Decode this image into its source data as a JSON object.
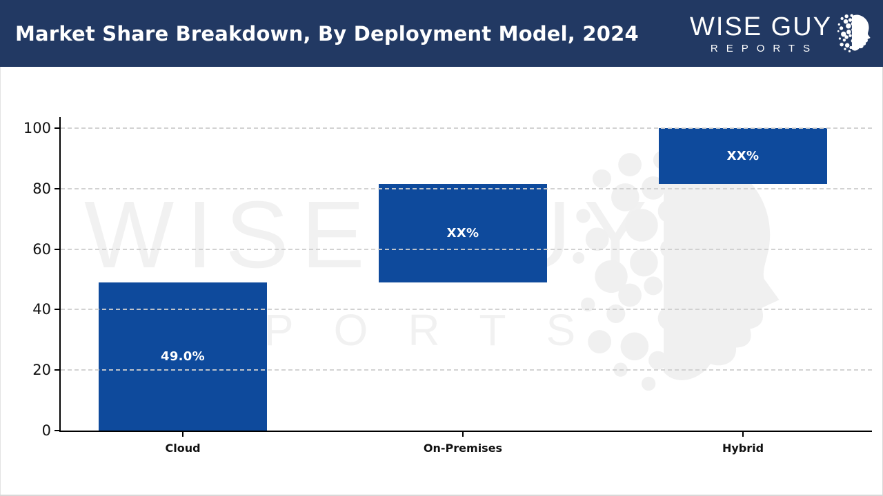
{
  "header": {
    "background": "#223963",
    "title": "Market Share Breakdown, By Deployment Model, 2024",
    "logo": {
      "line1": "WISE GUY",
      "line2": "REPORTS"
    }
  },
  "watermark": {
    "line1": "WISE GUY",
    "line2": "REPORTS"
  },
  "chart_data": {
    "type": "bar",
    "subtype": "floating-waterfall",
    "title": "Market Share Breakdown, By Deployment Model, 2024",
    "categories": [
      "Cloud",
      "On-Premises",
      "Hybrid"
    ],
    "series": [
      {
        "name": "Cloud",
        "start": 0,
        "end": 49.0,
        "value": 49.0,
        "label": "49.0%"
      },
      {
        "name": "On-Premises",
        "start": 49.0,
        "end": 81.5,
        "value": 32.5,
        "label": "XX%"
      },
      {
        "name": "Hybrid",
        "start": 81.5,
        "end": 100.0,
        "value": 18.5,
        "label": "XX%"
      }
    ],
    "xlabel": "",
    "ylabel": "",
    "yticks": [
      0,
      20,
      40,
      60,
      80,
      100
    ],
    "ylim": [
      0,
      103.6
    ],
    "grid": "horizontal-dashed",
    "legend_position": "none",
    "colors": {
      "bar": "#0E4A9C",
      "bar_label": "#FFFFFF",
      "gridline": "#CFCFCF",
      "axis": "#000000",
      "tick_label": "#111111"
    }
  }
}
